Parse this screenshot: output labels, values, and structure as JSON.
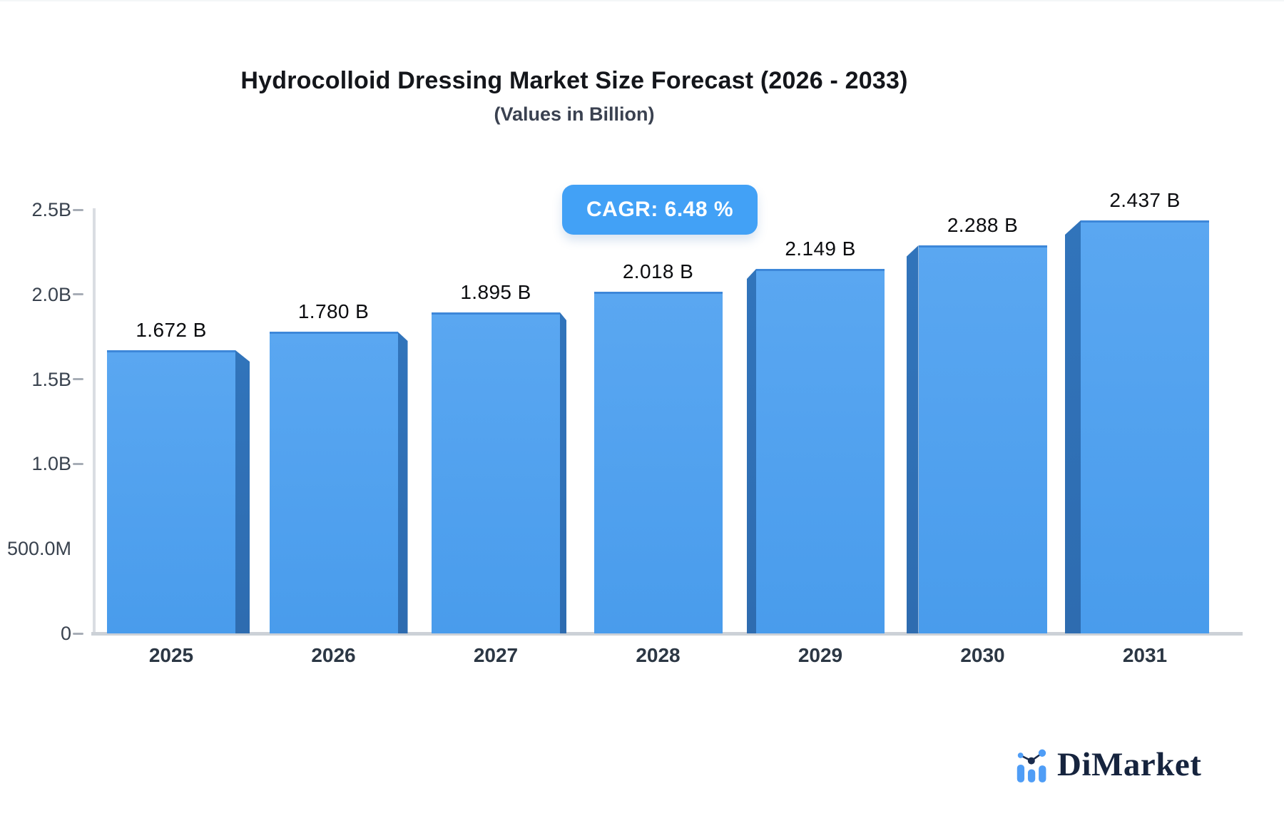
{
  "header": {
    "title": "Hydrocolloid Dressing Market Size Forecast (2026 - 2033)",
    "subtitle": "(Values in Billion)"
  },
  "badge": {
    "label": "CAGR: 6.48 %"
  },
  "brand": {
    "name": "DiMarket"
  },
  "chart_data": {
    "type": "bar",
    "title": "Hydrocolloid Dressing Market Size Forecast (2026 - 2033)",
    "subtitle": "(Values in Billion)",
    "cagr_percent": 6.48,
    "categories": [
      "2025",
      "2026",
      "2027",
      "2028",
      "2029",
      "2030",
      "2031"
    ],
    "values": [
      1.672,
      1.78,
      1.895,
      2.018,
      2.149,
      2.288,
      2.437
    ],
    "value_labels": [
      "1.672 B",
      "1.780 B",
      "1.895 B",
      "2.018 B",
      "2.149 B",
      "2.288 B",
      "2.437 B"
    ],
    "xlabel": "",
    "ylabel": "",
    "ylim": [
      0,
      2.5
    ],
    "y_ticks": [
      {
        "label": "2.5B",
        "value": 2.5,
        "tick": true
      },
      {
        "label": "2.0B",
        "value": 2.0,
        "tick": true
      },
      {
        "label": "1.5B",
        "value": 1.5,
        "tick": true
      },
      {
        "label": "1.0B",
        "value": 1.0,
        "tick": true
      },
      {
        "label": "500.0M",
        "value": 0.5,
        "tick": false
      },
      {
        "label": "0",
        "value": 0,
        "tick": true
      }
    ],
    "grid": false,
    "legend": false,
    "colors": {
      "bar_face": "#55a4ef",
      "bar_face_top_border": "#3d87d9",
      "bar_side": "#2f70b6",
      "badge_bg": "#42a1f6",
      "badge_text": "#ffffff",
      "axis": "#dadde2",
      "brand_navy": "#16243e",
      "brand_blue": "#4f9df6"
    }
  }
}
